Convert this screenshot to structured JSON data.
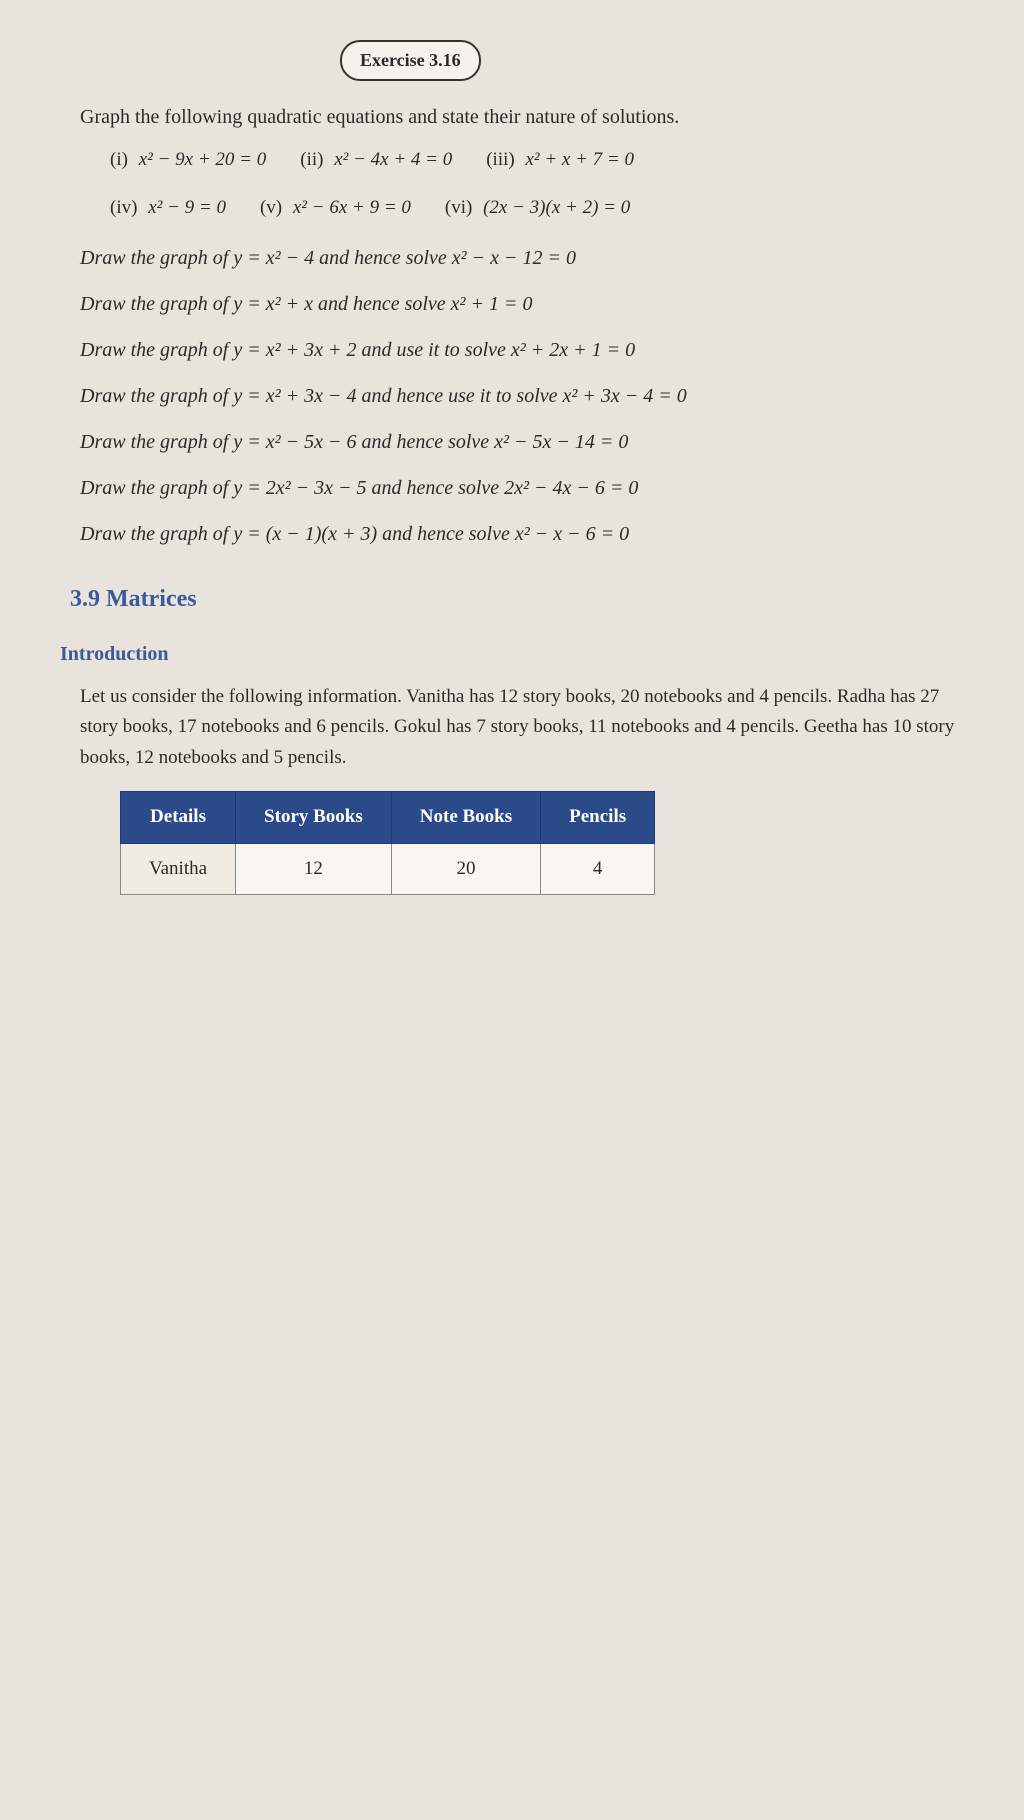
{
  "exercise_label": "Exercise 3.16",
  "q1_instruction": "Graph the following quadratic equations and state their nature of solutions.",
  "q1_items": [
    {
      "roman": "(i)",
      "eq": "x² − 9x + 20 = 0"
    },
    {
      "roman": "(ii)",
      "eq": "x² − 4x + 4 = 0"
    },
    {
      "roman": "(iii)",
      "eq": "x² + x + 7 = 0"
    },
    {
      "roman": "(iv)",
      "eq": "x² − 9 = 0"
    },
    {
      "roman": "(v)",
      "eq": "x² − 6x + 9 = 0"
    },
    {
      "roman": "(vi)",
      "eq": "(2x − 3)(x + 2) = 0"
    }
  ],
  "tasks": [
    "Draw the graph of y = x² − 4 and hence solve x² − x − 12 = 0",
    "Draw the graph of y = x² + x and hence solve x² + 1 = 0",
    "Draw the graph of y = x² + 3x + 2 and use it to solve x² + 2x + 1 = 0",
    "Draw the graph of y = x² + 3x − 4 and hence use it to solve x² + 3x − 4 = 0",
    "Draw the graph of y = x² − 5x − 6 and hence solve x² − 5x − 14 = 0",
    "Draw the graph of y = 2x² − 3x − 5 and hence solve 2x² − 4x − 6 = 0",
    "Draw the graph of y = (x − 1)(x + 3) and hence solve x² − x − 6 = 0"
  ],
  "matrices_heading": "3.9  Matrices",
  "introduction_heading": "Introduction",
  "intro_paragraph": "Let us consider the following information. Vanitha has 12 story books, 20 notebooks and 4 pencils. Radha has 27 story books, 17 notebooks and 6 pencils. Gokul has 7 story books, 11 notebooks and 4 pencils. Geetha has 10 story books, 12 notebooks and 5 pencils.",
  "table": {
    "headers": [
      "Details",
      "Story Books",
      "Note Books",
      "Pencils"
    ],
    "header_bg": "#2a4a8a",
    "header_fg": "#ffffff",
    "rows": [
      {
        "label": "Vanitha",
        "cells": [
          "12",
          "20",
          "4"
        ]
      }
    ]
  }
}
